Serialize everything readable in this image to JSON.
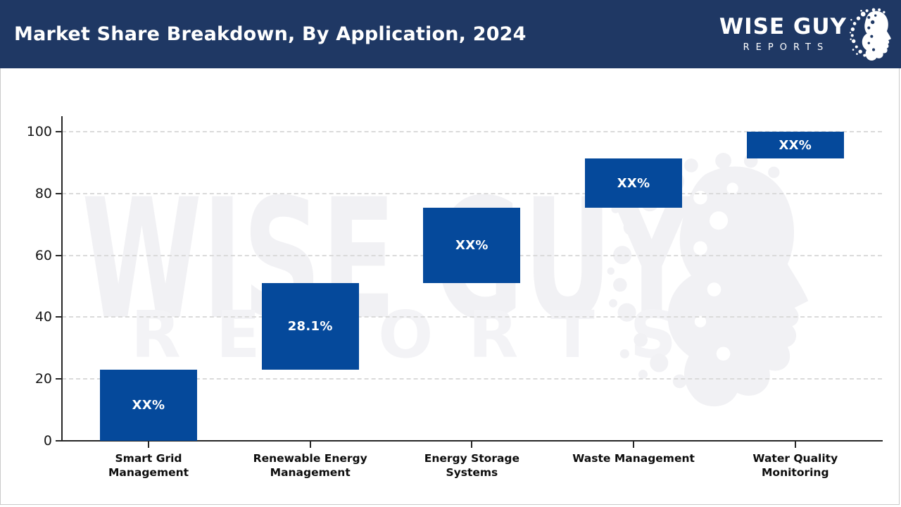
{
  "header": {
    "title": "Market Share Breakdown, By Application, 2024",
    "bg_color": "#1f3864",
    "logo": {
      "line1": "WISE GUY",
      "line2": "REPORTS"
    }
  },
  "watermark": {
    "line1": "WISE GUY",
    "line2": "REPORTS"
  },
  "chart_data": {
    "type": "bar",
    "subtype": "waterfall-progression",
    "title": "Market Share Breakdown, By Application, 2024",
    "categories": [
      "Smart Grid Management",
      "Renewable Energy Management",
      "Energy Storage Systems",
      "Waste Management",
      "Water Quality Monitoring"
    ],
    "category_label_lines": [
      [
        "Smart Grid",
        "Management"
      ],
      [
        "Renewable Energy",
        "Management"
      ],
      [
        "Energy Storage",
        "Systems"
      ],
      [
        "Waste Management"
      ],
      [
        "Water Quality",
        "Monitoring"
      ]
    ],
    "values": [
      22.9,
      28.1,
      24.4,
      15.9,
      8.7
    ],
    "cumulative_ranges": [
      [
        0,
        22.9
      ],
      [
        22.9,
        51.0
      ],
      [
        51.0,
        75.4
      ],
      [
        75.4,
        91.3
      ],
      [
        91.3,
        100
      ]
    ],
    "value_labels": [
      "XX%",
      "28.1%",
      "XX%",
      "XX%",
      "XX%"
    ],
    "xlabel": "",
    "ylabel": "",
    "ylim": [
      0,
      100
    ],
    "yticks": [
      0,
      20,
      40,
      60,
      80,
      100
    ],
    "grid": "dashed-horizontal",
    "legend": "none",
    "bar_color": "#05499b",
    "bar_label_color": "#ffffff"
  }
}
